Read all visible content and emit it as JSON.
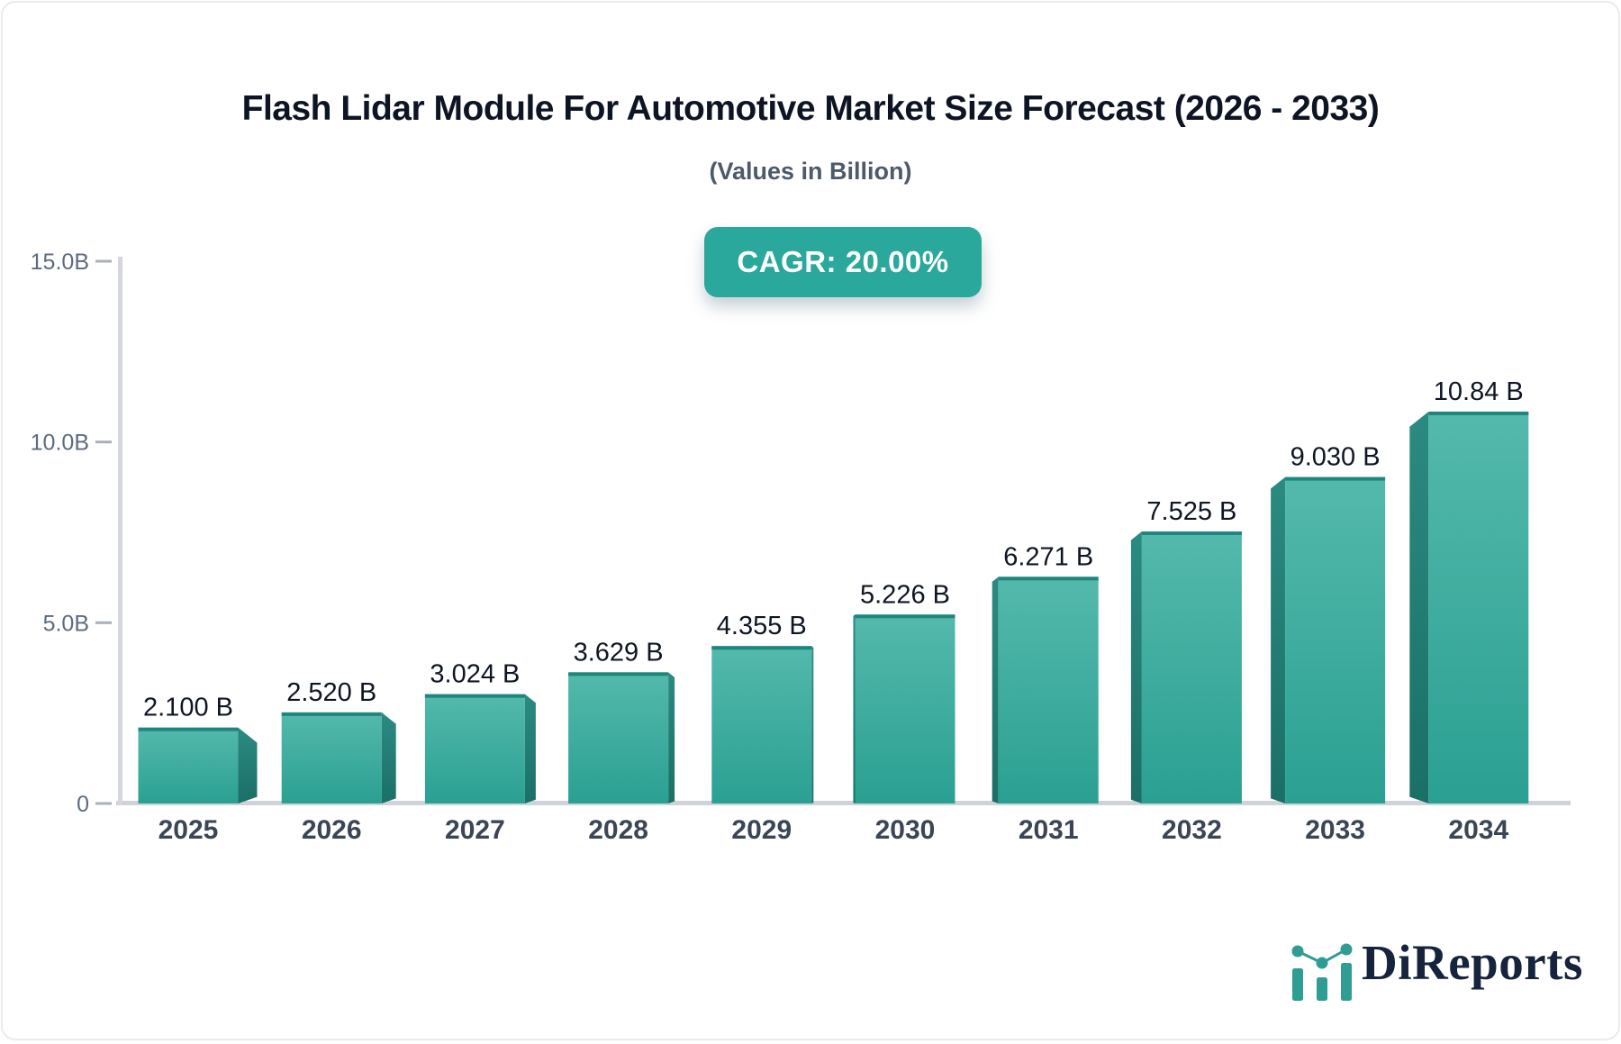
{
  "header": {
    "title": "Flash Lidar Module For Automotive Market Size Forecast (2026 - 2033)",
    "subtitle": "(Values in Billion)"
  },
  "badge": {
    "label": "CAGR: 20.00%"
  },
  "chart_data": {
    "type": "bar",
    "title": "Flash Lidar Module For Automotive Market Size Forecast (2026 - 2033)",
    "subtitle": "(Values in Billion)",
    "categories": [
      "2025",
      "2026",
      "2027",
      "2028",
      "2029",
      "2030",
      "2031",
      "2032",
      "2033",
      "2034"
    ],
    "values": [
      2.1,
      2.52,
      3.024,
      3.629,
      4.355,
      5.226,
      6.271,
      7.525,
      9.03,
      10.84
    ],
    "value_labels": [
      "2.100 B",
      "2.520 B",
      "3.024 B",
      "3.629 B",
      "4.355 B",
      "5.226 B",
      "6.271 B",
      "7.525 B",
      "9.030 B",
      "10.84 B"
    ],
    "xlabel": "",
    "ylabel": "",
    "ylim": [
      0,
      15
    ],
    "y_ticks": [
      {
        "v": 0,
        "label": "0"
      },
      {
        "v": 5,
        "label": "5.0B"
      },
      {
        "v": 10,
        "label": "10.0B"
      },
      {
        "v": 15,
        "label": "15.0B"
      }
    ],
    "grid": false,
    "legend": "none",
    "cagr": "20.00%"
  },
  "colors": {
    "accent_teal": "#2aa89b",
    "bar_front_top": "#54b9ac",
    "bar_front_bottom": "#2aa092",
    "bar_side_top": "#2b8b81",
    "bar_side_bottom": "#1b6f66",
    "bar_top_edge": "#1f867d",
    "axis_line": "#d4d7dc",
    "baseline": "#cfd3d9",
    "tick_mark": "#aab0ba",
    "y_label": "#5d6b80",
    "x_label": "#3a4556",
    "value_label": "#0e1624",
    "logo_navy": "#16233d",
    "logo_teal": "#2f9d93"
  },
  "logo": {
    "text": "DiReports",
    "icon": "bar-chart-logo-icon"
  }
}
